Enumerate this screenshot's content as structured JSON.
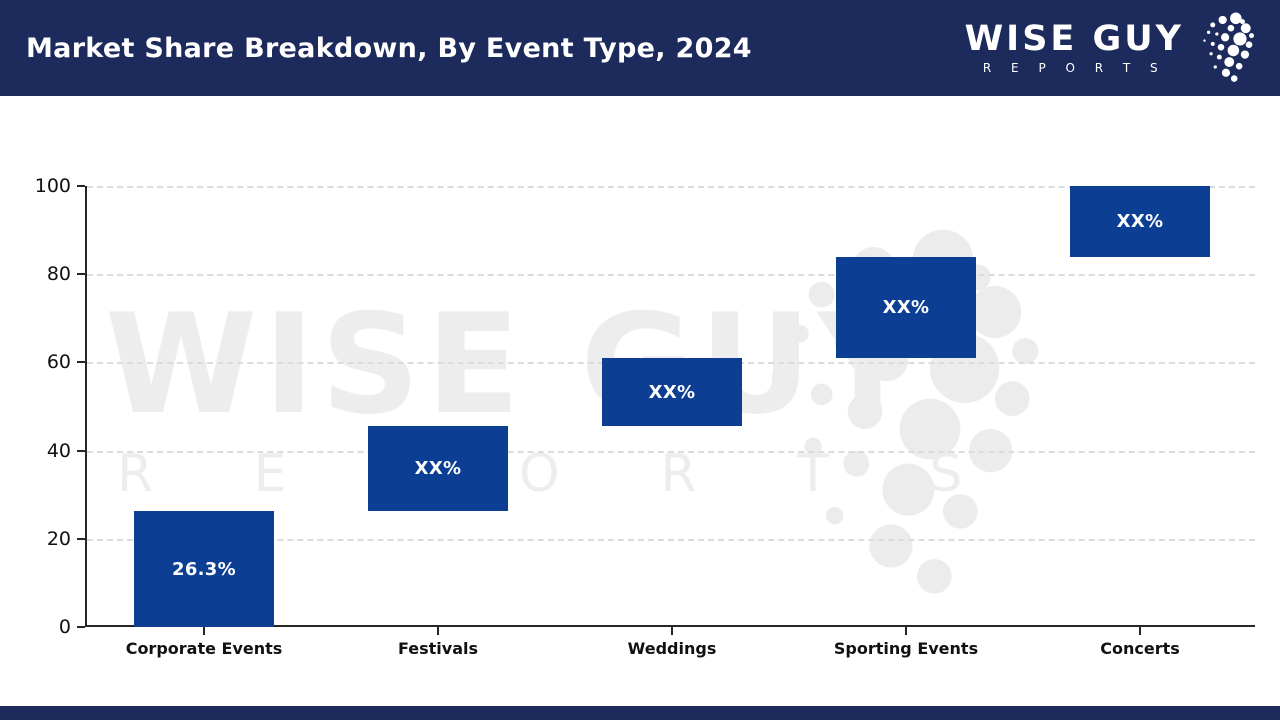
{
  "header": {
    "title": "Market Share Breakdown, By Event Type, 2024",
    "logo": {
      "line1": "WISE GUY",
      "line2": "R E P O R T S"
    }
  },
  "watermark": {
    "line1": "WISE GUY",
    "line2": "R E P O R T S"
  },
  "colors": {
    "header_bg": "#1c2a5c",
    "footer_bg": "#1c2a5c",
    "bar": "#0c3f93",
    "grid": "#dcdcdc",
    "watermark_text": "#ededed"
  },
  "chart_data": {
    "type": "bar",
    "subtype": "waterfall",
    "title": "Market Share Breakdown, By Event Type, 2024",
    "xlabel": "",
    "ylabel": "",
    "ylim": [
      0,
      100
    ],
    "yticks": [
      0,
      20,
      40,
      60,
      80,
      100
    ],
    "grid": "horizontal-dashed",
    "legend": "none",
    "bar_color": "#0c3f93",
    "categories": [
      "Corporate Events",
      "Festivals",
      "Weddings",
      "Sporting Events",
      "Concerts"
    ],
    "segments": [
      {
        "category": "Corporate Events",
        "start": 0,
        "end": 26.3,
        "label": "26.3%"
      },
      {
        "category": "Festivals",
        "start": 26.3,
        "end": 45.5,
        "label": "XX%"
      },
      {
        "category": "Weddings",
        "start": 45.5,
        "end": 61,
        "label": "XX%"
      },
      {
        "category": "Sporting Events",
        "start": 61,
        "end": 84,
        "label": "XX%"
      },
      {
        "category": "Concerts",
        "start": 84,
        "end": 100,
        "label": "XX%"
      }
    ]
  }
}
